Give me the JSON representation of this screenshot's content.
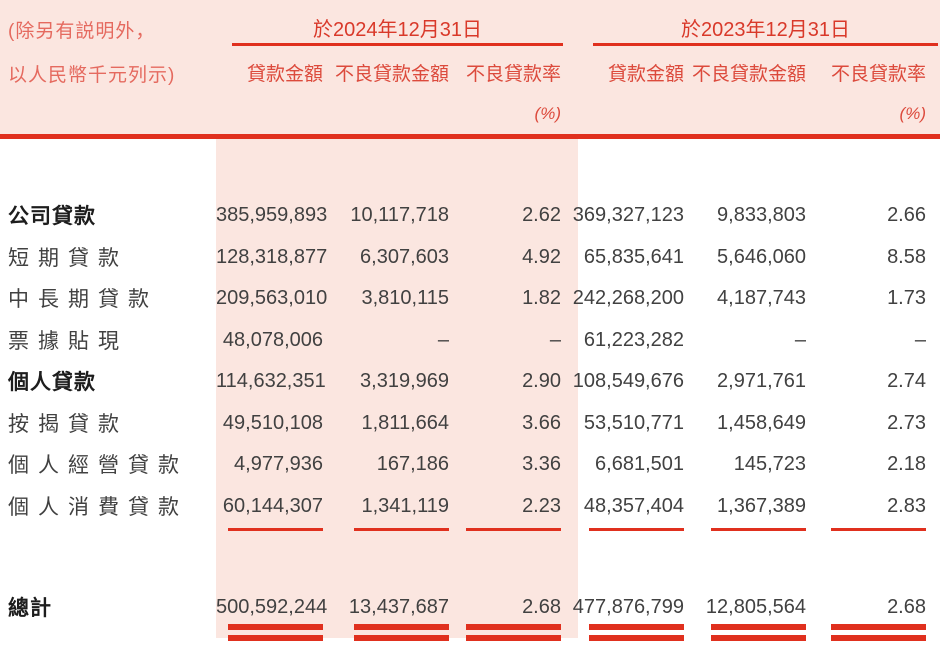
{
  "note": {
    "line1": "(除另有説明外，",
    "line2": "以人民幣千元列示)"
  },
  "header": {
    "group_2024": "於2024年12月31日",
    "group_2023": "於2023年12月31日",
    "col_loan_amount": "貸款金額",
    "col_npl_amount": "不良貸款金額",
    "col_npl_ratio": "不良貸款率",
    "ratio_unit": "(%)"
  },
  "rows": [
    {
      "label": "公司貸款",
      "y2024": {
        "loan": "385,959,893",
        "npl": "10,117,718",
        "ratio": "2.62"
      },
      "y2023": {
        "loan": "369,327,123",
        "npl": "9,833,803",
        "ratio": "2.66"
      }
    },
    {
      "label": "短期貸款",
      "y2024": {
        "loan": "128,318,877",
        "npl": "6,307,603",
        "ratio": "4.92"
      },
      "y2023": {
        "loan": "65,835,641",
        "npl": "5,646,060",
        "ratio": "8.58"
      }
    },
    {
      "label": "中長期貸款",
      "y2024": {
        "loan": "209,563,010",
        "npl": "3,810,115",
        "ratio": "1.82"
      },
      "y2023": {
        "loan": "242,268,200",
        "npl": "4,187,743",
        "ratio": "1.73"
      }
    },
    {
      "label": "票據貼現",
      "y2024": {
        "loan": "48,078,006",
        "npl": "–",
        "ratio": "–"
      },
      "y2023": {
        "loan": "61,223,282",
        "npl": "–",
        "ratio": "–"
      }
    },
    {
      "label": "個人貸款",
      "y2024": {
        "loan": "114,632,351",
        "npl": "3,319,969",
        "ratio": "2.90"
      },
      "y2023": {
        "loan": "108,549,676",
        "npl": "2,971,761",
        "ratio": "2.74"
      }
    },
    {
      "label": "按揭貸款",
      "y2024": {
        "loan": "49,510,108",
        "npl": "1,811,664",
        "ratio": "3.66"
      },
      "y2023": {
        "loan": "53,510,771",
        "npl": "1,458,649",
        "ratio": "2.73"
      }
    },
    {
      "label": "個人經營貸款",
      "y2024": {
        "loan": "4,977,936",
        "npl": "167,186",
        "ratio": "3.36"
      },
      "y2023": {
        "loan": "6,681,501",
        "npl": "145,723",
        "ratio": "2.18"
      }
    },
    {
      "label": "個人消費貸款",
      "y2024": {
        "loan": "60,144,307",
        "npl": "1,341,119",
        "ratio": "2.23"
      },
      "y2023": {
        "loan": "48,357,404",
        "npl": "1,367,389",
        "ratio": "2.83"
      }
    }
  ],
  "total": {
    "label": "總計",
    "y2024": {
      "loan": "500,592,244",
      "npl": "13,437,687",
      "ratio": "2.68"
    },
    "y2023": {
      "loan": "477,876,799",
      "npl": "12,805,564",
      "ratio": "2.68"
    }
  },
  "colors": {
    "accent_red": "#e0301e",
    "header_text_red": "#dc4a3c",
    "note_text_red": "#e56a5f",
    "band_pink": "#fbe6e0",
    "body_text": "#414141"
  }
}
